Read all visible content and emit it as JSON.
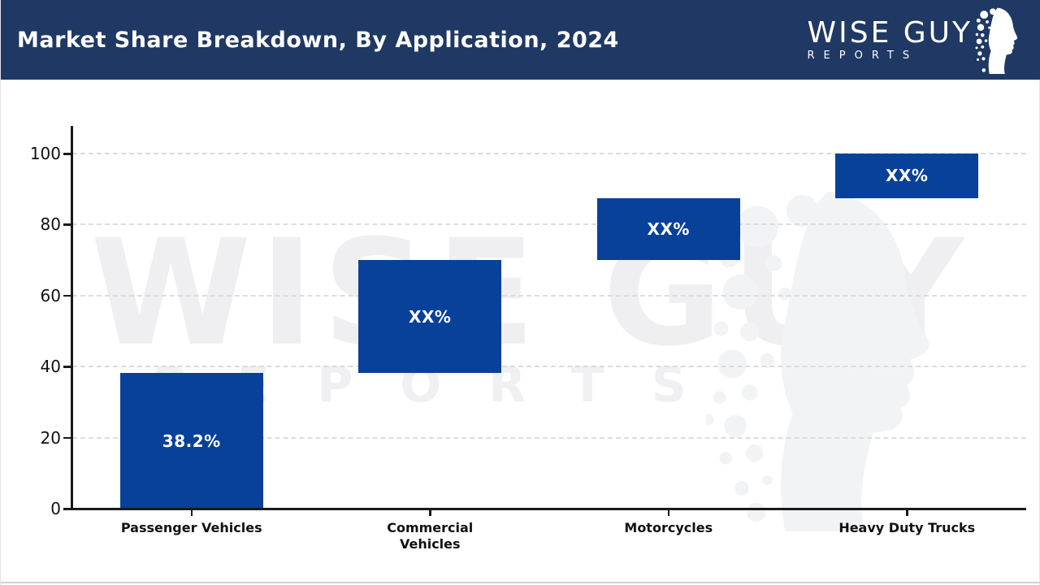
{
  "header": {
    "title": "Market Share Breakdown, By Application, 2024",
    "bg_color": "#1f3864",
    "logo": {
      "line1": "WISE GUY",
      "line2": "REPORTS"
    }
  },
  "watermark": {
    "line1": "WISE GUY",
    "line2": "REPORTS"
  },
  "footer": {
    "line_color": "#cfd3d6"
  },
  "chart_data": {
    "type": "bar",
    "variant": "floating-waterfall",
    "title": "Market Share Breakdown, By Application, 2024",
    "categories": [
      "Passenger Vehicles",
      "Commercial Vehicles",
      "Motorcycles",
      "Heavy Duty Trucks"
    ],
    "category_label_lines": [
      [
        "Passenger Vehicles"
      ],
      [
        "Commercial",
        "Vehicles"
      ],
      [
        "Motorcycles"
      ],
      [
        "Heavy Duty Trucks"
      ]
    ],
    "segments": [
      {
        "category": "Passenger Vehicles",
        "start": 0,
        "end": 38.2,
        "label": "38.2%"
      },
      {
        "category": "Commercial Vehicles",
        "start": 38.2,
        "end": 70,
        "label": "XX%"
      },
      {
        "category": "Motorcycles",
        "start": 70,
        "end": 87.5,
        "label": "XX%"
      },
      {
        "category": "Heavy Duty Trucks",
        "start": 87.5,
        "end": 100,
        "label": "XX%"
      }
    ],
    "yticks": [
      0,
      20,
      40,
      60,
      80,
      100
    ],
    "ylim": [
      0,
      107
    ],
    "xlabel": "",
    "ylabel": "",
    "grid": "horizontal-dashed",
    "legend": "none",
    "bar_color": "#084199",
    "label_color": "#ffffff"
  }
}
